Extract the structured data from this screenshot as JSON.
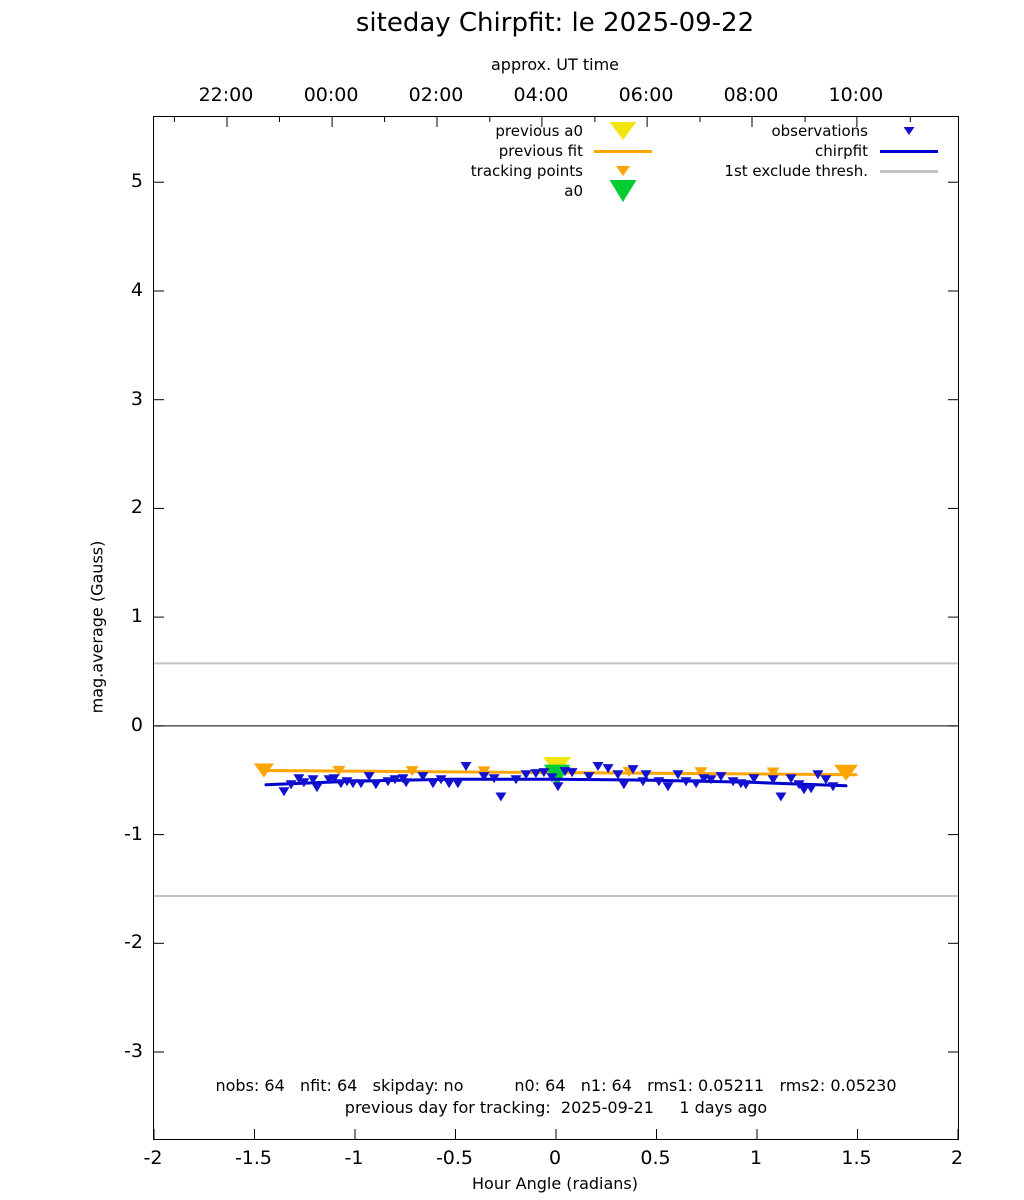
{
  "title": "siteday Chirpfit:  le  2025-09-22",
  "top_axis": {
    "label": "approx. UT time",
    "ticks": [
      {
        "label": "22:00",
        "ha": -1.637
      },
      {
        "label": "00:00",
        "ha": -1.114
      },
      {
        "label": "02:00",
        "ha": -0.592
      },
      {
        "label": "04:00",
        "ha": -0.07
      },
      {
        "label": "06:00",
        "ha": 0.453
      },
      {
        "label": "08:00",
        "ha": 0.975
      },
      {
        "label": "10:00",
        "ha": 1.497
      }
    ]
  },
  "left_axis": {
    "label": "mag.average (Gauss)",
    "tick_labels": [
      "5",
      "4",
      "3",
      "2",
      "1",
      "0",
      "-1",
      "-2",
      "-3"
    ],
    "values": [
      5,
      4,
      3,
      2,
      1,
      0,
      -1,
      -2,
      -3
    ]
  },
  "bottom_axis": {
    "label": "Hour Angle (radians)",
    "tick_labels": [
      "-2",
      "-1.5",
      "-1",
      "-0.5",
      "0",
      "0.5",
      "1",
      "1.5",
      "2"
    ],
    "values": [
      -2,
      -1.5,
      -1,
      -0.5,
      0,
      0.5,
      1,
      1.5,
      2
    ]
  },
  "legend": {
    "left": [
      {
        "label": "previous a0",
        "marker": "triangle-large",
        "color_key": "previous_a0"
      },
      {
        "label": "previous fit",
        "marker": "line",
        "color_key": "previous_fit"
      },
      {
        "label": "tracking points",
        "marker": "triangle-small",
        "color_key": "tracking"
      },
      {
        "label": "a0",
        "marker": "triangle-large",
        "color_key": "a0"
      }
    ],
    "right": [
      {
        "label": "observations",
        "marker": "triangle-tiny",
        "color_key": "observations"
      },
      {
        "label": "chirpfit",
        "marker": "line",
        "color_key": "chirpfit"
      },
      {
        "label": "1st exclude thresh.",
        "marker": "line",
        "color_key": "exclude"
      }
    ]
  },
  "stats": {
    "line1": "nobs: 64   nfit: 64   skipday: no          n0: 64   n1: 64   rms1: 0.05211   rms2: 0.05230",
    "line2": "previous day for tracking:  2025-09-21     1 days ago",
    "nobs": 64,
    "nfit": 64,
    "skipday": "no",
    "n0": 64,
    "n1": 64,
    "rms1": 0.05211,
    "rms2": 0.0523,
    "previous_day_for_tracking": "2025-09-21",
    "days_ago": "1 days ago"
  },
  "colors": {
    "background": "#ffffff",
    "axis": "#000000",
    "observations": "#1111cf",
    "chirpfit": "#0000cd",
    "previous_fit": "#ffa500",
    "tracking": "#ffa500",
    "previous_a0": "#f2e50e",
    "a0": "#00cd32",
    "exclude": "#c3c3c3"
  },
  "chart_data": {
    "type": "scatter",
    "title": "siteday Chirpfit:  le  2025-09-22",
    "xlabel": "Hour Angle (radians)",
    "ylabel": "mag.average (Gauss)",
    "xlim": [
      -2,
      2
    ],
    "ylim": [
      -3.8,
      5.6
    ],
    "grid": false,
    "legend_position": "top-inside",
    "series": [
      {
        "name": "1st exclude thresh.",
        "type": "hline",
        "color_key": "exclude",
        "width": 2,
        "values": [
          0.574,
          -1.565
        ]
      },
      {
        "name": "zero-line",
        "type": "hline",
        "color_key": "axis",
        "width": 1,
        "values": [
          0
        ]
      },
      {
        "name": "previous fit",
        "type": "line",
        "color_key": "previous_fit",
        "width": 3,
        "points": [
          [
            -1.458,
            -0.411
          ],
          [
            1.493,
            -0.449
          ]
        ]
      },
      {
        "name": "tracking points",
        "type": "markers",
        "marker": "triangle-down",
        "color_key": "tracking",
        "sizes": [
          [
            20,
            14
          ],
          [
            13,
            10
          ],
          [
            13,
            10
          ],
          [
            13,
            10
          ],
          [
            13,
            10
          ],
          [
            13,
            10
          ],
          [
            13,
            10
          ],
          [
            13,
            10
          ],
          [
            24,
            16
          ]
        ],
        "points": [
          [
            -1.453,
            -0.411
          ],
          [
            -1.08,
            -0.414
          ],
          [
            -0.716,
            -0.416
          ],
          [
            -0.358,
            -0.419
          ],
          [
            0.005,
            -0.421
          ],
          [
            0.363,
            -0.424
          ],
          [
            0.721,
            -0.426
          ],
          [
            1.08,
            -0.429
          ],
          [
            1.443,
            -0.432
          ]
        ]
      },
      {
        "name": "previous a0",
        "type": "markers",
        "marker": "triangle-down",
        "color_key": "previous_a0",
        "sizes": [
          [
            28,
            19
          ]
        ],
        "points": [
          [
            0.005,
            -0.374
          ]
        ]
      },
      {
        "name": "a0",
        "type": "markers",
        "marker": "triangle-down",
        "color_key": "a0",
        "sizes": [
          [
            26,
            22
          ]
        ],
        "points": [
          [
            0.005,
            -0.458
          ]
        ]
      },
      {
        "name": "chirpfit",
        "type": "line",
        "color_key": "chirpfit",
        "width": 3,
        "points": [
          [
            -1.443,
            -0.542
          ],
          [
            -1.02,
            -0.509
          ],
          [
            -0.522,
            -0.491
          ],
          [
            0.0,
            -0.491
          ],
          [
            0.473,
            -0.5
          ],
          [
            0.97,
            -0.519
          ],
          [
            1.443,
            -0.551
          ]
        ]
      },
      {
        "name": "observations",
        "type": "markers",
        "marker": "triangle-down",
        "color_key": "observations",
        "size": [
          11,
          9
        ],
        "points": [
          [
            -1.353,
            -0.607
          ],
          [
            -1.318,
            -0.542
          ],
          [
            -1.279,
            -0.486
          ],
          [
            -1.254,
            -0.523
          ],
          [
            -1.209,
            -0.495
          ],
          [
            -1.189,
            -0.57
          ],
          [
            -1.129,
            -0.495
          ],
          [
            -1.104,
            -0.486
          ],
          [
            -1.07,
            -0.533
          ],
          [
            -1.04,
            -0.514
          ],
          [
            -1.01,
            -0.533
          ],
          [
            -0.97,
            -0.533
          ],
          [
            -0.93,
            -0.467
          ],
          [
            -0.896,
            -0.542
          ],
          [
            -0.836,
            -0.514
          ],
          [
            -0.801,
            -0.495
          ],
          [
            -0.761,
            -0.486
          ],
          [
            -0.746,
            -0.523
          ],
          [
            -0.662,
            -0.467
          ],
          [
            -0.612,
            -0.533
          ],
          [
            -0.572,
            -0.495
          ],
          [
            -0.532,
            -0.533
          ],
          [
            -0.488,
            -0.533
          ],
          [
            -0.448,
            -0.374
          ],
          [
            -0.358,
            -0.467
          ],
          [
            -0.308,
            -0.486
          ],
          [
            -0.274,
            -0.654
          ],
          [
            -0.199,
            -0.495
          ],
          [
            -0.149,
            -0.449
          ],
          [
            -0.1,
            -0.439
          ],
          [
            -0.06,
            -0.43
          ],
          [
            -0.02,
            -0.477
          ],
          [
            0.01,
            -0.561
          ],
          [
            0.045,
            -0.421
          ],
          [
            0.08,
            -0.43
          ],
          [
            0.164,
            -0.467
          ],
          [
            0.209,
            -0.374
          ],
          [
            0.259,
            -0.393
          ],
          [
            0.308,
            -0.449
          ],
          [
            0.338,
            -0.542
          ],
          [
            0.383,
            -0.402
          ],
          [
            0.433,
            -0.514
          ],
          [
            0.448,
            -0.449
          ],
          [
            0.512,
            -0.514
          ],
          [
            0.557,
            -0.561
          ],
          [
            0.607,
            -0.449
          ],
          [
            0.647,
            -0.514
          ],
          [
            0.697,
            -0.533
          ],
          [
            0.736,
            -0.486
          ],
          [
            0.771,
            -0.495
          ],
          [
            0.821,
            -0.467
          ],
          [
            0.881,
            -0.514
          ],
          [
            0.92,
            -0.533
          ],
          [
            0.945,
            -0.542
          ],
          [
            0.985,
            -0.486
          ],
          [
            1.08,
            -0.495
          ],
          [
            1.119,
            -0.654
          ],
          [
            1.169,
            -0.486
          ],
          [
            1.209,
            -0.542
          ],
          [
            1.234,
            -0.589
          ],
          [
            1.269,
            -0.579
          ],
          [
            1.303,
            -0.449
          ],
          [
            1.343,
            -0.495
          ],
          [
            1.378,
            -0.561
          ]
        ]
      }
    ]
  }
}
